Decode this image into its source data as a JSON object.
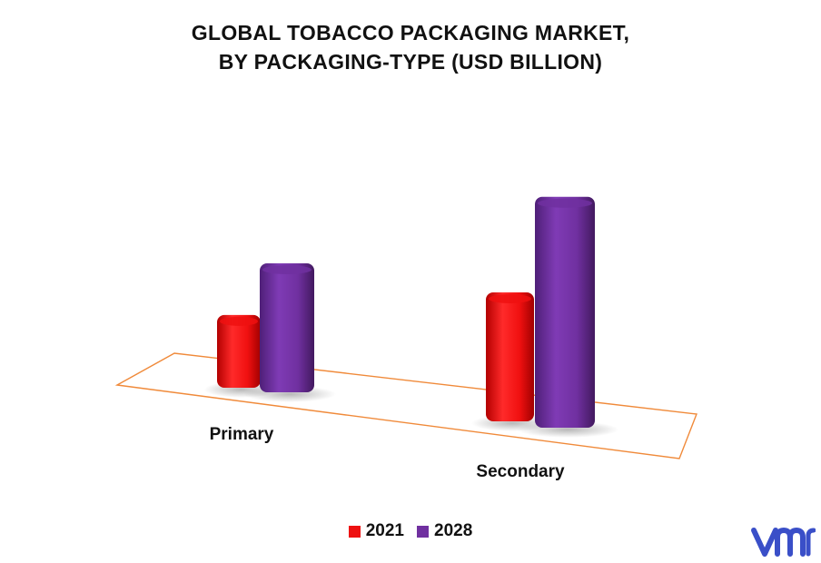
{
  "title_line1": "GLOBAL TOBACCO PACKAGING MARKET,",
  "title_line2": "BY PACKAGING-TYPE (USD BILLION)",
  "logo_text": "vmr",
  "colors": {
    "series_2021": "#ee1111",
    "series_2028": "#7030a0",
    "floor": "#f08a3a",
    "logo": "#3a4fc8"
  },
  "chart_data": {
    "type": "bar",
    "title": "GLOBAL TOBACCO PACKAGING MARKET, BY PACKAGING-TYPE (USD BILLION)",
    "categories": [
      "Primary",
      "Secondary"
    ],
    "series": [
      {
        "name": "2021",
        "values": [
          3.5,
          6.2
        ]
      },
      {
        "name": "2028",
        "values": [
          6.2,
          11.1
        ]
      }
    ],
    "xlabel": "",
    "ylabel": "",
    "grid": false,
    "legend_position": "bottom"
  }
}
